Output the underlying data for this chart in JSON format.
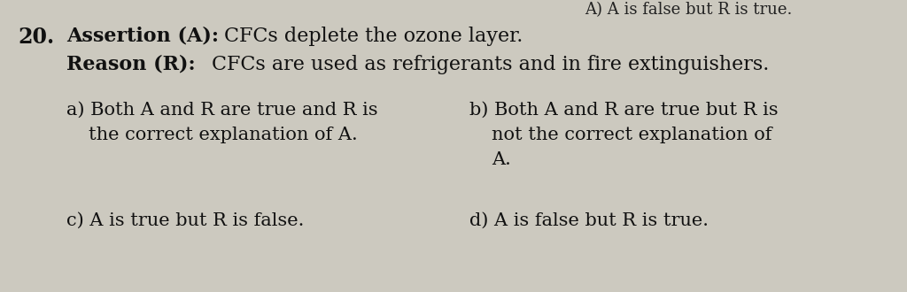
{
  "background_color": "#ccc9bf",
  "question_number": "20.",
  "assertion_label": "Assertion (A):",
  "assertion_text": "CFCs deplete the ozone layer.",
  "reason_label": "Reason (R):",
  "reason_text": "CFCs are used as refrigerants and in fire extinguishers.",
  "top_partial_text": "A) A is false but R is true.",
  "option_a_line1": "a) Both A and R are true and R is",
  "option_a_line2": "    the correct explanation of A.",
  "option_b_line1": "b) Both A and R are true but R is",
  "option_b_line2": "    not the correct explanation of",
  "option_b_line3": "    A.",
  "option_c": "c) A is true but R is false.",
  "option_d": "d) A is false but R is true.",
  "text_color": "#111111",
  "font_size_main": 16,
  "font_size_options": 15,
  "font_size_number": 17
}
